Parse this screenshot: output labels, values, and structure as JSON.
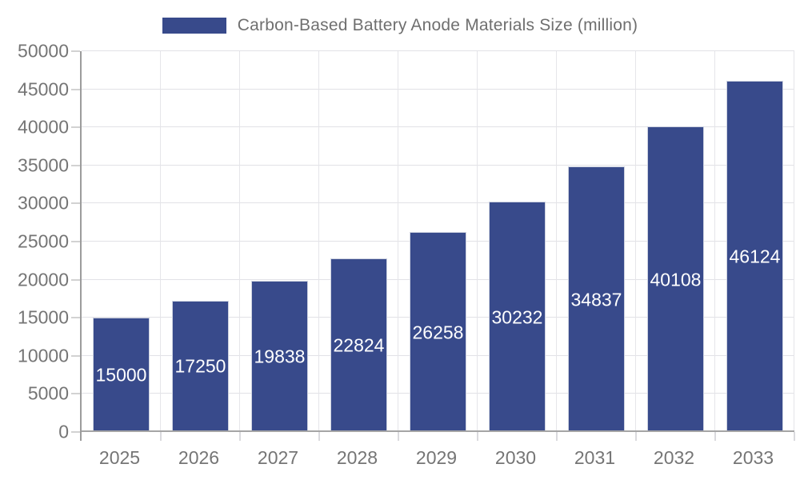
{
  "chart_data": {
    "type": "bar",
    "title": "Carbon-Based Battery Anode Materials Size (million)",
    "legend_position": "top",
    "categories": [
      "2025",
      "2026",
      "2027",
      "2028",
      "2029",
      "2030",
      "2031",
      "2032",
      "2033"
    ],
    "values": [
      15000,
      17250,
      19838,
      22824,
      26258,
      30232,
      34837,
      40108,
      46124
    ],
    "xlabel": "",
    "ylabel": "",
    "ylim": [
      0,
      50000
    ],
    "ytick_step": 5000,
    "yticks": [
      0,
      5000,
      10000,
      15000,
      20000,
      25000,
      30000,
      35000,
      40000,
      45000,
      50000
    ],
    "grid": true,
    "data_labels_position": "inside-center",
    "colors": {
      "bar": "#384A8B",
      "bar_label": "#ffffff",
      "axis": "#9c9c9c",
      "grid": "#e2e2e7",
      "tick_label": "#757575",
      "legend_text": "#6f6f6f"
    }
  }
}
